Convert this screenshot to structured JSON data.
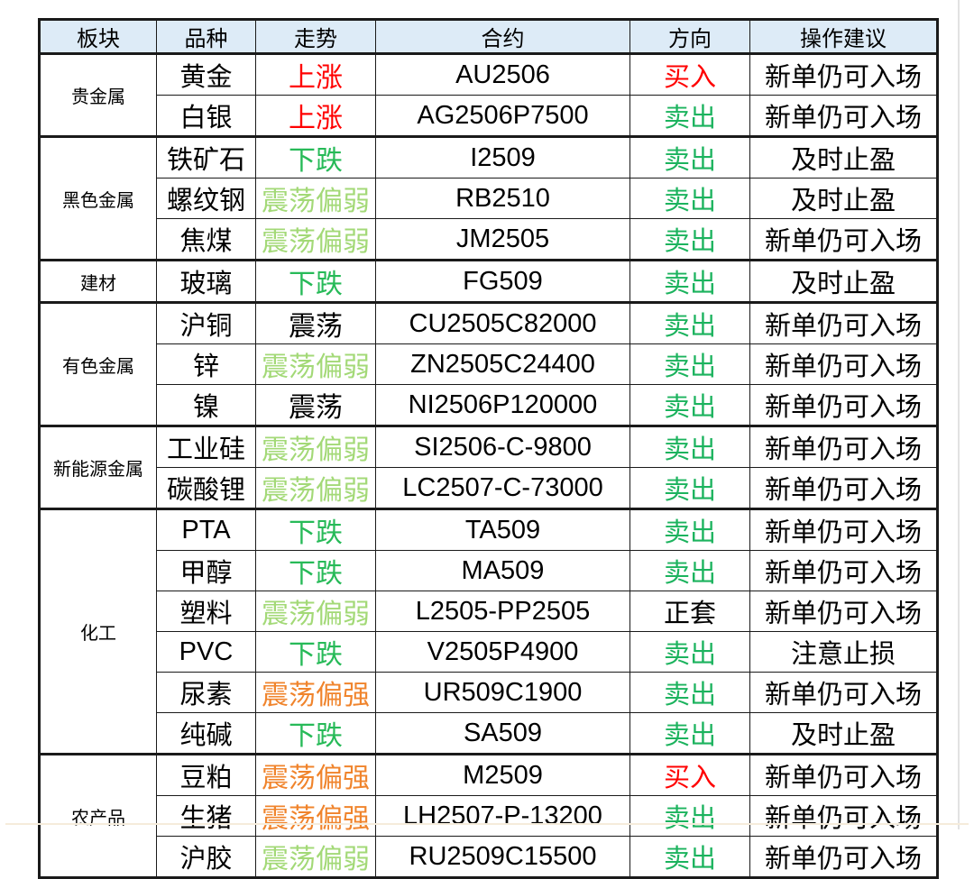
{
  "chart_data": {
    "type": "table",
    "columns": [
      "板块",
      "品种",
      "走势",
      "合约",
      "方向",
      "操作建议"
    ],
    "rows": [
      [
        "贵金属",
        "黄金",
        "上涨",
        "AU2506",
        "买入",
        "新单仍可入场"
      ],
      [
        "贵金属",
        "白银",
        "上涨",
        "AG2506P7500",
        "卖出",
        "新单仍可入场"
      ],
      [
        "黑色金属",
        "铁矿石",
        "下跌",
        "I2509",
        "卖出",
        "及时止盈"
      ],
      [
        "黑色金属",
        "螺纹钢",
        "震荡偏弱",
        "RB2510",
        "卖出",
        "及时止盈"
      ],
      [
        "黑色金属",
        "焦煤",
        "震荡偏弱",
        "JM2505",
        "卖出",
        "新单仍可入场"
      ],
      [
        "建材",
        "玻璃",
        "下跌",
        "FG509",
        "卖出",
        "及时止盈"
      ],
      [
        "有色金属",
        "沪铜",
        "震荡",
        "CU2505C82000",
        "卖出",
        "新单仍可入场"
      ],
      [
        "有色金属",
        "锌",
        "震荡偏弱",
        "ZN2505C24400",
        "卖出",
        "新单仍可入场"
      ],
      [
        "有色金属",
        "镍",
        "震荡",
        "NI2506P120000",
        "卖出",
        "新单仍可入场"
      ],
      [
        "新能源金属",
        "工业硅",
        "震荡偏弱",
        "SI2506-C-9800",
        "卖出",
        "新单仍可入场"
      ],
      [
        "新能源金属",
        "碳酸锂",
        "震荡偏弱",
        "LC2507-C-73000",
        "卖出",
        "新单仍可入场"
      ],
      [
        "化工",
        "PTA",
        "下跌",
        "TA509",
        "卖出",
        "新单仍可入场"
      ],
      [
        "化工",
        "甲醇",
        "下跌",
        "MA509",
        "卖出",
        "新单仍可入场"
      ],
      [
        "化工",
        "塑料",
        "震荡偏弱",
        "L2505-PP2505",
        "正套",
        "新单仍可入场"
      ],
      [
        "化工",
        "PVC",
        "下跌",
        "V2505P4900",
        "卖出",
        "注意止损"
      ],
      [
        "化工",
        "尿素",
        "震荡偏强",
        "UR509C1900",
        "卖出",
        "新单仍可入场"
      ],
      [
        "化工",
        "纯碱",
        "下跌",
        "SA509",
        "卖出",
        "及时止盈"
      ],
      [
        "农产品",
        "豆粕",
        "震荡偏强",
        "M2509",
        "买入",
        "新单仍可入场"
      ],
      [
        "农产品",
        "生猪",
        "震荡偏强",
        "LH2507-P-13200",
        "卖出",
        "新单仍可入场"
      ],
      [
        "农产品",
        "沪胶",
        "震荡偏弱",
        "RU2509C15500",
        "卖出",
        "新单仍可入场"
      ]
    ]
  },
  "trend_colors": {
    "上涨": "#FF0000",
    "下跌": "#27BA58",
    "震荡": "#000000",
    "震荡偏弱": "#A3D977",
    "震荡偏强": "#F0842C"
  },
  "direction_colors": {
    "买入": "#FF0000",
    "卖出": "#1CB35E",
    "正套": "#000000"
  },
  "styles": {
    "header_bg": "#DDEBF7",
    "border_color": "#1A1A1A",
    "edge_line_right_color": "#E2E2E2",
    "edge_line_bottom_color": "#F5ECDB"
  }
}
